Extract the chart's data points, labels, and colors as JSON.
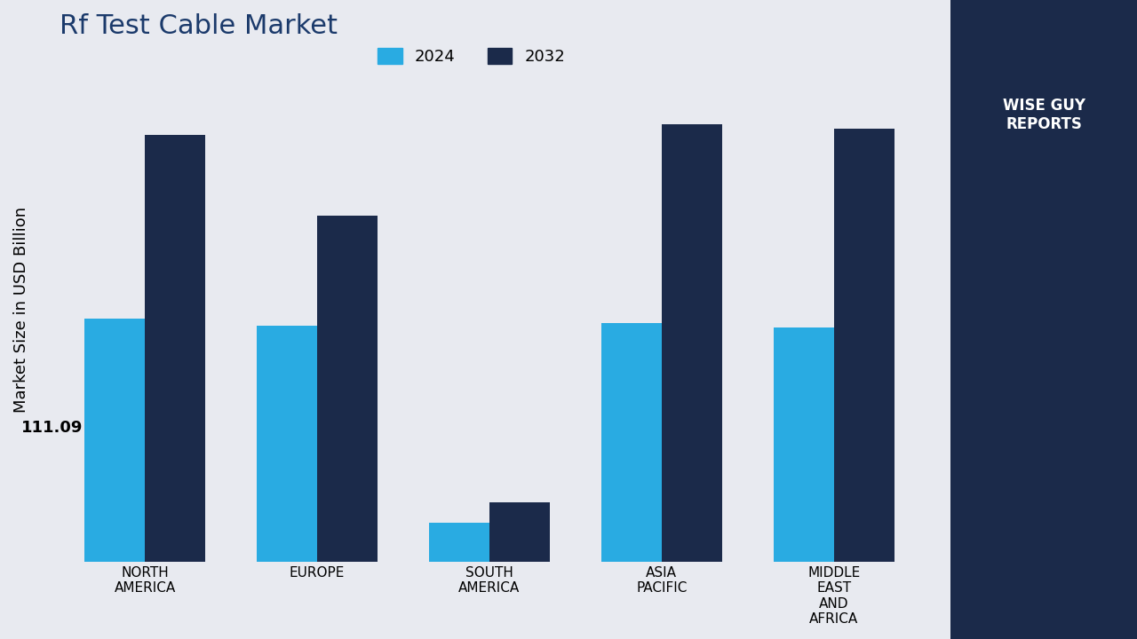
{
  "title": "Rf Test Cable Market",
  "ylabel": "Market Size in USD Billion",
  "categories": [
    "NORTH\nAMERICA",
    "EUROPE",
    "SOUTH\nAMERICA",
    "ASIA\nPACIFIC",
    "MIDDLE\nEAST\nAND\nAFRICA"
  ],
  "values_2024": [
    111.09,
    108.0,
    18.0,
    109.0,
    107.0
  ],
  "values_2032": [
    195.0,
    158.0,
    27.0,
    200.0,
    198.0
  ],
  "color_2024": "#29ABE2",
  "color_2032": "#1B2A4A",
  "annotation_label": "111.09",
  "annotation_bar_index": 0,
  "legend_labels": [
    "2024",
    "2032"
  ],
  "background_color": "#E8EAF0",
  "bar_width": 0.35,
  "title_fontsize": 22,
  "axis_label_fontsize": 13,
  "tick_fontsize": 11,
  "legend_fontsize": 13,
  "annotation_fontsize": 13
}
